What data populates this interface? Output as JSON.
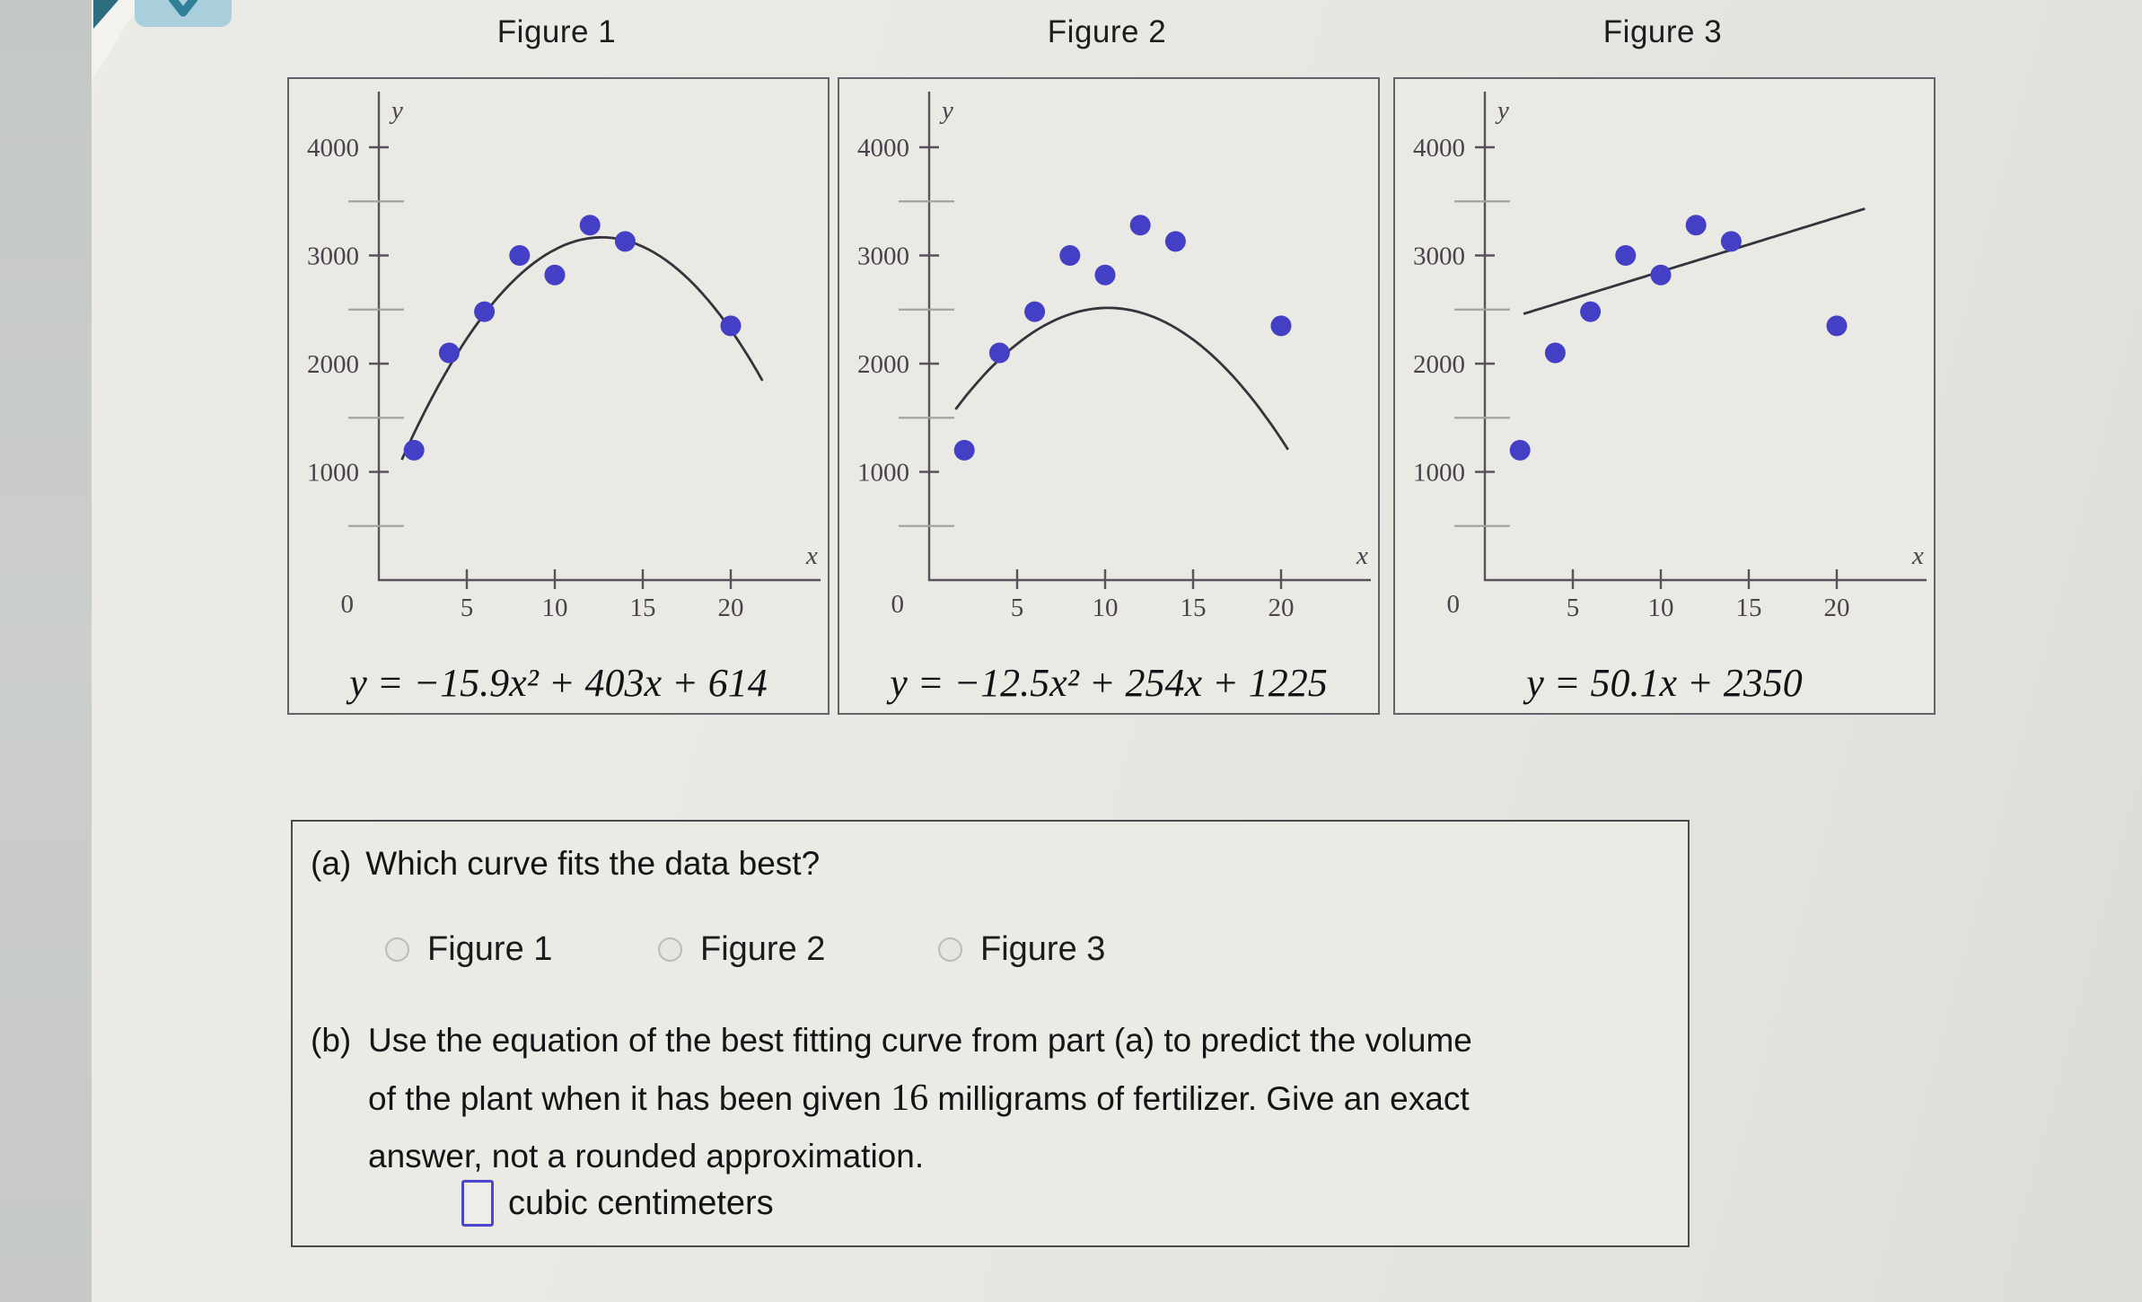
{
  "page": {
    "background": "#e9e8e3",
    "left_strip_color": "#c8cbc7",
    "accent_blue": "#4a47d2"
  },
  "decor": {
    "corner_triangle_color": "#2d6d80",
    "app_icon_bg": "#aacfdc",
    "app_icon_chevron_color": "#2f8096"
  },
  "chart_style": {
    "axis_color": "#57525c",
    "minor_tick_color": "#a4a39e",
    "curve_color": "#35343c",
    "point_color": "#4340c6"
  },
  "chart_data": [
    {
      "type": "scatter",
      "title": "Figure 1",
      "xlabel": "x",
      "ylabel": "y",
      "xlim": [
        0,
        23
      ],
      "ylim": [
        0,
        4500
      ],
      "x_ticks": [
        5,
        10,
        15,
        20
      ],
      "y_ticks_labeled": [
        1000,
        2000,
        3000,
        4000
      ],
      "y_ticks_minor": [
        500,
        1500,
        2500,
        3500
      ],
      "origin_label": "0",
      "points": [
        [
          2,
          1200
        ],
        [
          4,
          2100
        ],
        [
          6,
          2480
        ],
        [
          8,
          3000
        ],
        [
          10,
          2820
        ],
        [
          12,
          3280
        ],
        [
          14,
          3130
        ],
        [
          20,
          2350
        ]
      ],
      "fit": {
        "kind": "quadratic",
        "a": -15.9,
        "b": 403,
        "c": 614,
        "x_range": [
          1.3,
          21.8
        ]
      },
      "equation_label": "y = −15.9x² + 403x + 614"
    },
    {
      "type": "scatter",
      "title": "Figure 2",
      "xlabel": "x",
      "ylabel": "y",
      "xlim": [
        0,
        23
      ],
      "ylim": [
        0,
        4500
      ],
      "x_ticks": [
        5,
        10,
        15,
        20
      ],
      "y_ticks_labeled": [
        1000,
        2000,
        3000,
        4000
      ],
      "y_ticks_minor": [
        500,
        1500,
        2500,
        3500
      ],
      "origin_label": "0",
      "points": [
        [
          2,
          1200
        ],
        [
          4,
          2100
        ],
        [
          6,
          2480
        ],
        [
          8,
          3000
        ],
        [
          10,
          2820
        ],
        [
          12,
          3280
        ],
        [
          14,
          3130
        ],
        [
          20,
          2350
        ]
      ],
      "fit": {
        "kind": "quadratic",
        "a": -12.5,
        "b": 254,
        "c": 1225,
        "x_range": [
          1.5,
          20.4
        ]
      },
      "equation_label": "y = −12.5x² + 254x + 1225"
    },
    {
      "type": "scatter",
      "title": "Figure 3",
      "xlabel": "x",
      "ylabel": "y",
      "xlim": [
        0,
        23
      ],
      "ylim": [
        0,
        4500
      ],
      "x_ticks": [
        5,
        10,
        15,
        20
      ],
      "y_ticks_labeled": [
        1000,
        2000,
        3000,
        4000
      ],
      "y_ticks_minor": [
        500,
        1500,
        2500,
        3500
      ],
      "origin_label": "0",
      "points": [
        [
          2,
          1200
        ],
        [
          4,
          2100
        ],
        [
          6,
          2480
        ],
        [
          8,
          3000
        ],
        [
          10,
          2820
        ],
        [
          12,
          3280
        ],
        [
          14,
          3130
        ],
        [
          20,
          2350
        ]
      ],
      "fit": {
        "kind": "linear",
        "m": 50.1,
        "b": 2350,
        "x_range": [
          2.2,
          21.6
        ]
      },
      "equation_label": "y = 50.1x + 2350"
    }
  ],
  "question": {
    "part_a": {
      "label": "(a)",
      "text": "Which curve fits the data best?",
      "options": [
        "Figure 1",
        "Figure 2",
        "Figure 3"
      ],
      "selected": null
    },
    "part_b": {
      "label": "(b)",
      "line1": "Use the equation of the best fitting curve from part (a) to predict the volume",
      "line2_pre": "of the plant when it has been given ",
      "line2_value": "16",
      "line2_post": " milligrams of fertilizer. Give an exact",
      "line3": "answer, not a rounded approximation.",
      "input_value": "",
      "unit_label": "cubic centimeters"
    }
  }
}
